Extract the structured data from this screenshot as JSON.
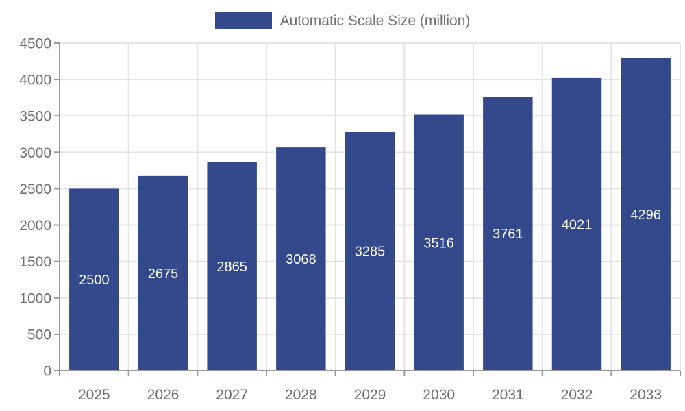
{
  "legend": {
    "label": "Automatic Scale Size (million)"
  },
  "colors": {
    "bar": "#34498b",
    "grid": "#e3e3e8",
    "axis": "#999999",
    "tick_label": "#6e6e6e",
    "legend_text": "#6e6e6e",
    "value_label": "#ffffff",
    "background": "#ffffff"
  },
  "chart_data": {
    "type": "bar",
    "title": "Automatic Scale Size (million)",
    "categories": [
      "2025",
      "2026",
      "2027",
      "2028",
      "2029",
      "2030",
      "2031",
      "2032",
      "2033"
    ],
    "values": [
      2500,
      2675,
      2865,
      3068,
      3285,
      3516,
      3761,
      4021,
      4296
    ],
    "xlabel": "",
    "ylabel": "",
    "ylim": [
      0,
      4500
    ],
    "ytick_step": 500,
    "ytick_labels": [
      "0",
      "500",
      "1000",
      "1500",
      "2000",
      "2500",
      "3000",
      "3500",
      "4000",
      "4500"
    ],
    "grid": true,
    "gridlines": "horizontal-and-vertical",
    "legend_position": "top-center",
    "value_label_position": "inside-center"
  }
}
